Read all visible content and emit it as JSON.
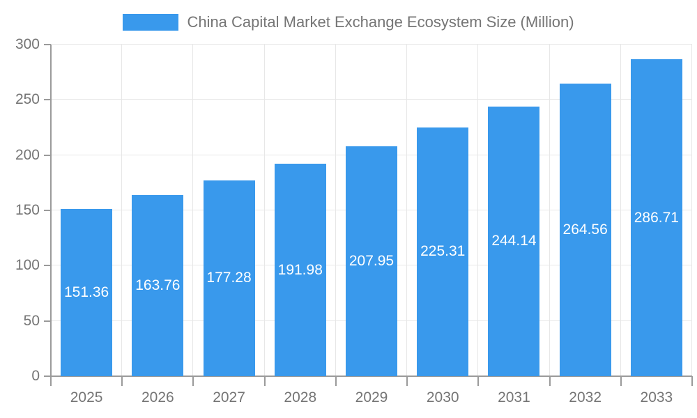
{
  "legend": {
    "label": "China Capital Market Exchange Ecosystem Size (Million)"
  },
  "chart_data": {
    "type": "bar",
    "title": "China Capital Market Exchange Ecosystem Size (Million)",
    "categories": [
      "2025",
      "2026",
      "2027",
      "2028",
      "2029",
      "2030",
      "2031",
      "2032",
      "2033"
    ],
    "values": [
      151.36,
      163.76,
      177.28,
      191.98,
      207.95,
      225.31,
      244.14,
      264.56,
      286.71
    ],
    "value_labels": [
      "151.36",
      "163.76",
      "177.28",
      "191.98",
      "207.95",
      "225.31",
      "244.14",
      "264.56",
      "286.71"
    ],
    "xlabel": "",
    "ylabel": "",
    "ylim": [
      0,
      300
    ],
    "yticks": [
      0,
      50,
      100,
      150,
      200,
      250,
      300
    ],
    "grid": true,
    "legend_position": "top",
    "bar_label_position": "center-inside",
    "colors": {
      "bar": "#3999EC",
      "grid": "#E7E7E7",
      "axis": "#9A9A9A",
      "tick_label": "#757575",
      "title": "#757575",
      "bar_label": "#FFFFFF",
      "background": "#FFFFFF"
    }
  }
}
